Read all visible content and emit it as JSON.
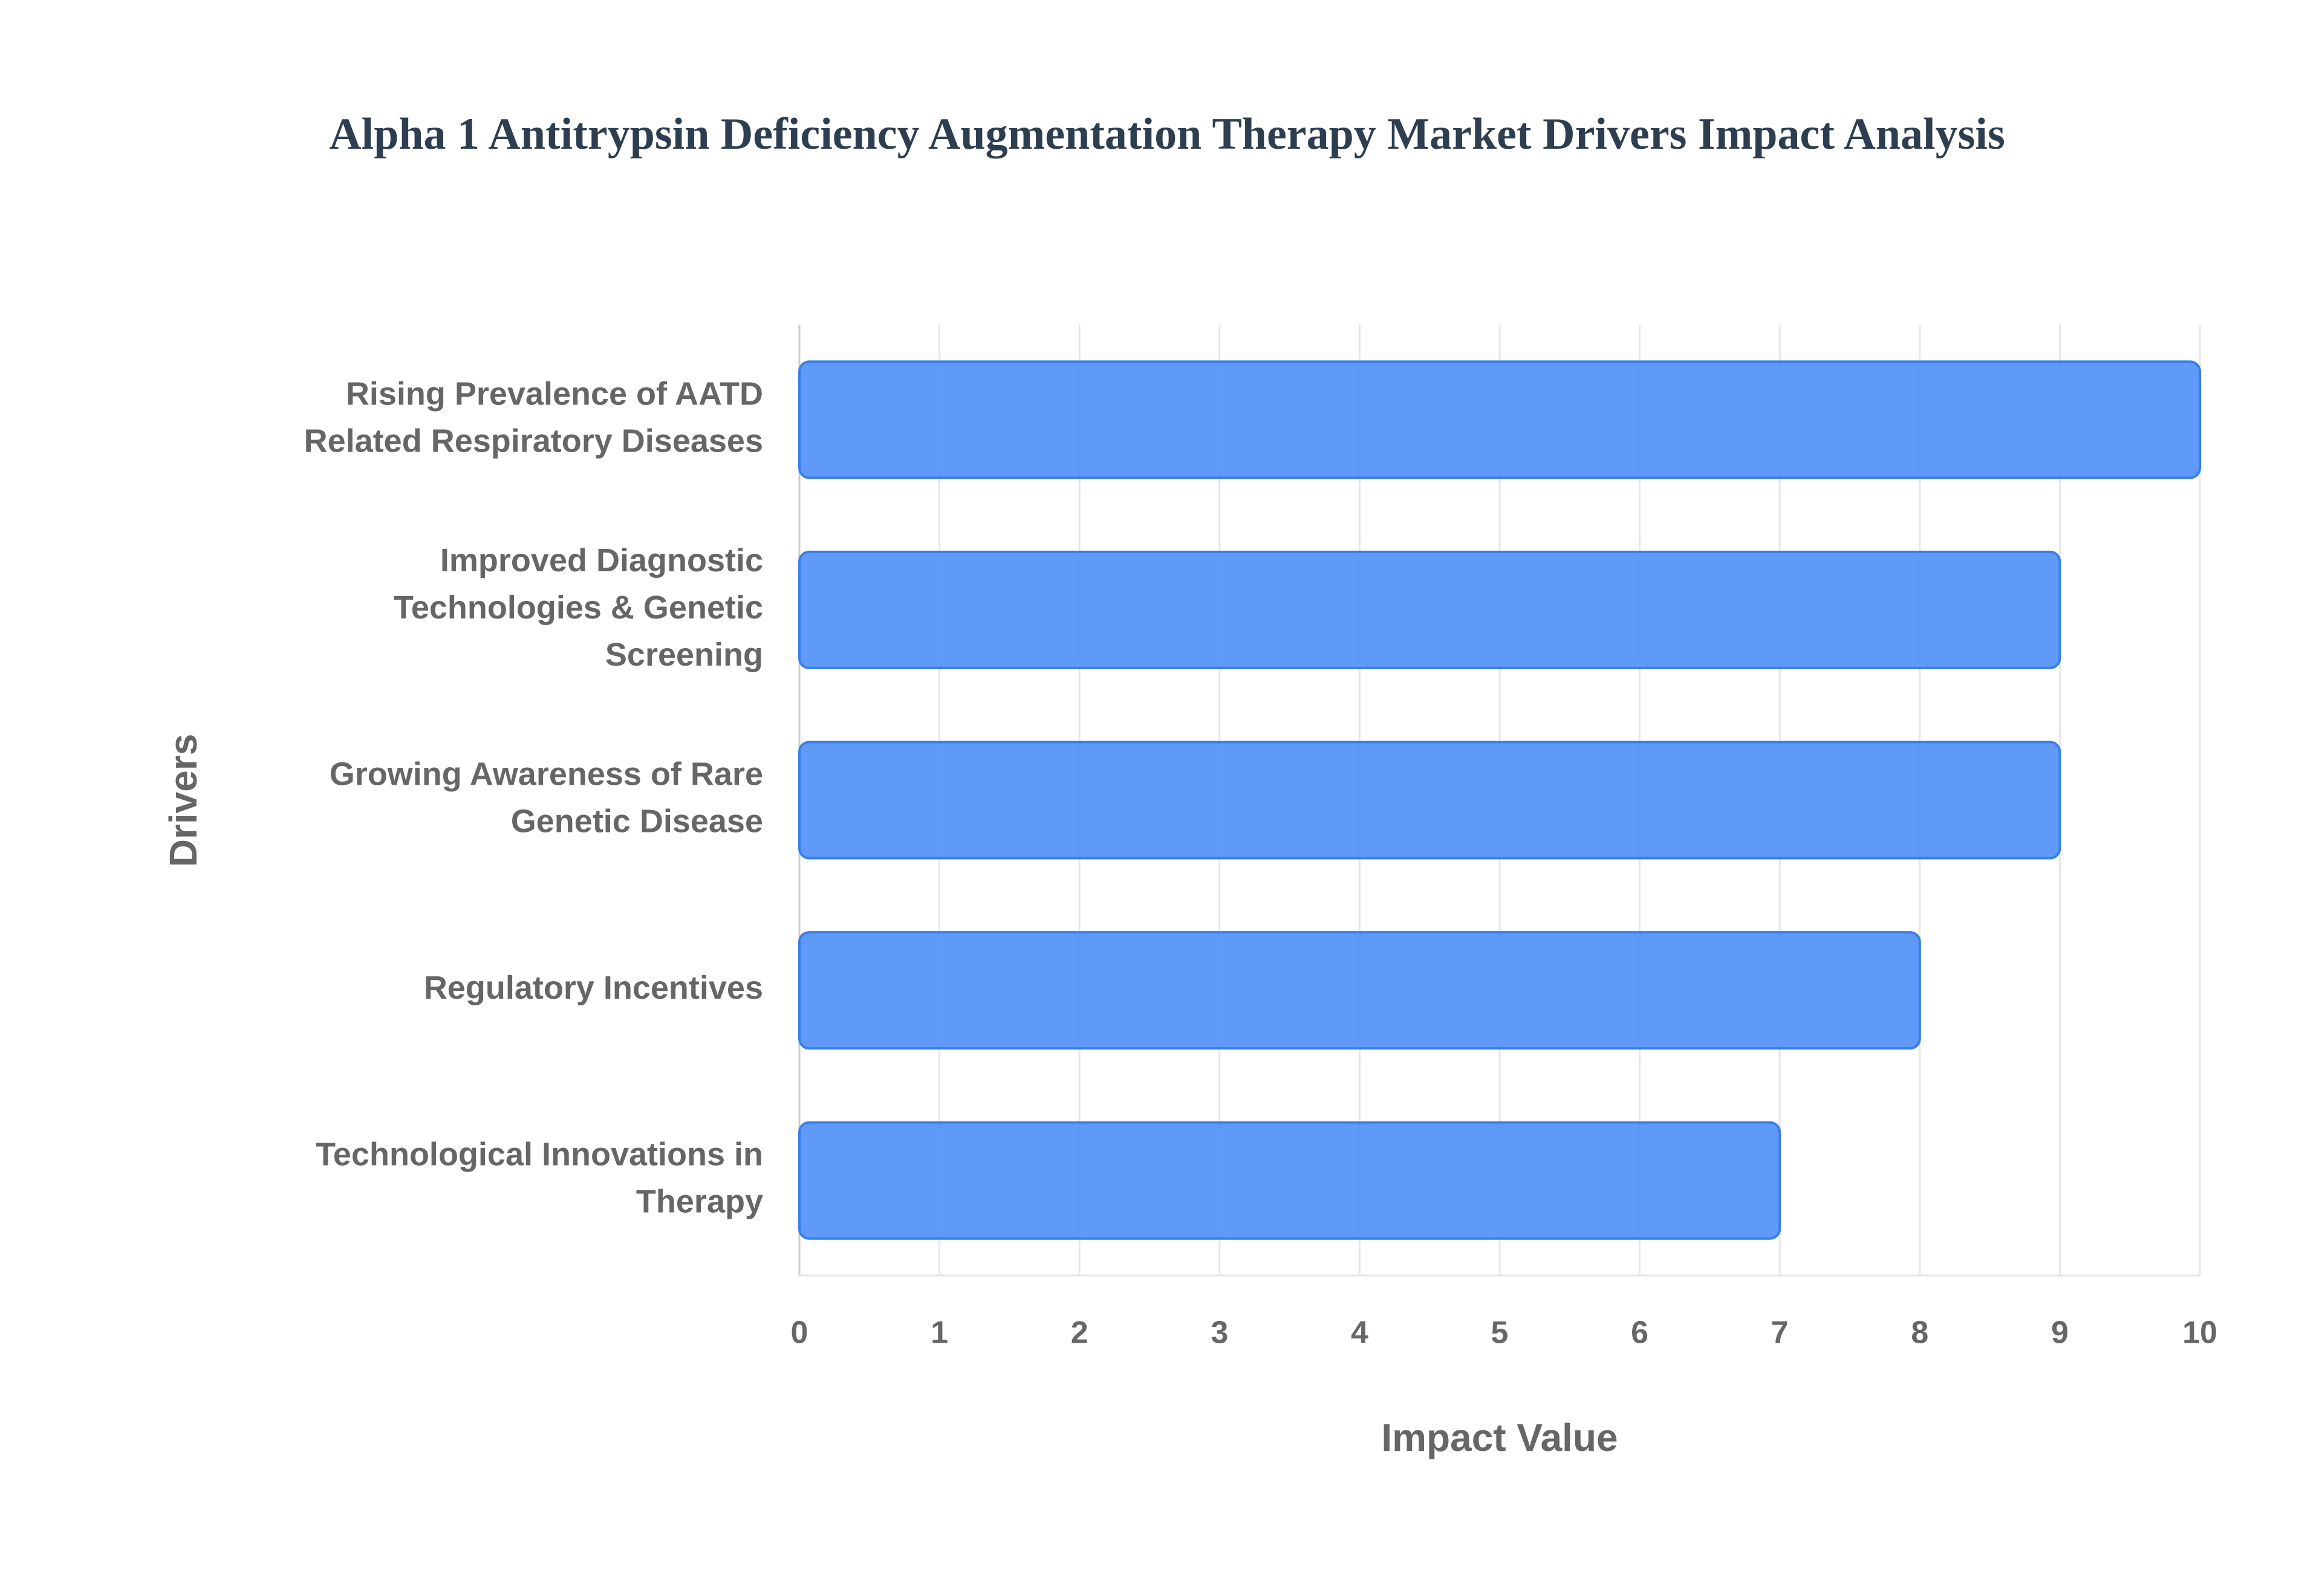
{
  "chart_data": {
    "type": "bar",
    "orientation": "horizontal",
    "title": "Alpha 1 Antitrypsin Deficiency Augmentation Therapy Market Drivers Impact Analysis",
    "x_label": "Impact Value",
    "y_label": "Drivers",
    "categories": [
      "Rising Prevalence of AATD Related Respiratory Diseases",
      "Improved Diagnostic Technologies & Genetic Screening",
      "Growing Awareness of Rare Genetic Disease",
      "Regulatory Incentives",
      "Technological Innovations in Therapy"
    ],
    "values": [
      10,
      9,
      9,
      8,
      7
    ],
    "color": "#4f8ff7",
    "xlim": [
      0,
      10
    ],
    "xticks": [
      0,
      1,
      2,
      3,
      4,
      5,
      6,
      7,
      8,
      9,
      10
    ],
    "grid": true
  }
}
